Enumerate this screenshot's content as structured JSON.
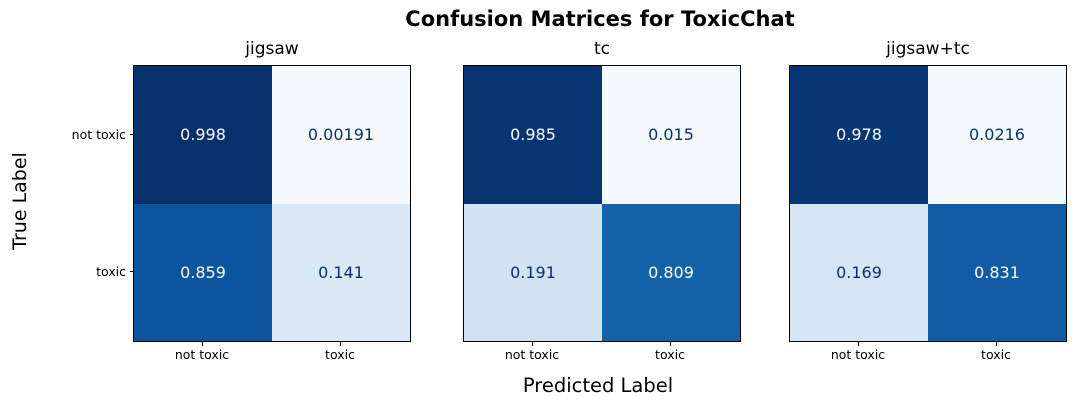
{
  "figure": {
    "title": "Confusion Matrices for ToxicChat",
    "xlabel": "Predicted Label",
    "ylabel": "True Label"
  },
  "tick_labels": {
    "x": [
      "not toxic",
      "toxic"
    ],
    "y": [
      "not toxic",
      "toxic"
    ]
  },
  "colors": {
    "colormap": "Blues",
    "light_text": "#f7fbff",
    "dark_text": "#08306b",
    "border": "#000000",
    "background": "#ffffff"
  },
  "chart_data": [
    {
      "type": "heatmap",
      "title": "jigsaw",
      "x_categories": [
        "not toxic",
        "toxic"
      ],
      "y_categories": [
        "not toxic",
        "toxic"
      ],
      "values": [
        [
          0.998,
          0.00191
        ],
        [
          0.859,
          0.141
        ]
      ],
      "cell_labels": [
        [
          "0.998",
          "0.00191"
        ],
        [
          "0.859",
          "0.141"
        ]
      ],
      "cell_colors": [
        [
          "#08316c",
          "#f6faff"
        ],
        [
          "#0b559f",
          "#dbe9f6"
        ]
      ],
      "text_colors": [
        [
          "#f7fbff",
          "#08306b"
        ],
        [
          "#f7fbff",
          "#08306b"
        ]
      ],
      "value_range": [
        0,
        1
      ],
      "colormap": "Blues"
    },
    {
      "type": "heatmap",
      "title": "tc",
      "x_categories": [
        "not toxic",
        "toxic"
      ],
      "y_categories": [
        "not toxic",
        "toxic"
      ],
      "values": [
        [
          0.985,
          0.015
        ],
        [
          0.191,
          0.809
        ]
      ],
      "cell_labels": [
        [
          "0.985",
          "0.015"
        ],
        [
          "0.191",
          "0.809"
        ]
      ],
      "cell_colors": [
        [
          "#083471",
          "#f4f9fe"
        ],
        [
          "#d1e3f3",
          "#1562a9"
        ]
      ],
      "text_colors": [
        [
          "#f7fbff",
          "#08306b"
        ],
        [
          "#08306b",
          "#f7fbff"
        ]
      ],
      "value_range": [
        0,
        1
      ],
      "colormap": "Blues"
    },
    {
      "type": "heatmap",
      "title": "jigsaw+tc",
      "x_categories": [
        "not toxic",
        "toxic"
      ],
      "y_categories": [
        "not toxic",
        "toxic"
      ],
      "values": [
        [
          0.978,
          0.0216
        ],
        [
          0.169,
          0.831
        ]
      ],
      "cell_labels": [
        [
          "0.978",
          "0.0216"
        ],
        [
          "0.169",
          "0.831"
        ]
      ],
      "cell_colors": [
        [
          "#083674",
          "#f3f8fe"
        ],
        [
          "#d6e5f4",
          "#115ca5"
        ]
      ],
      "text_colors": [
        [
          "#f7fbff",
          "#08306b"
        ],
        [
          "#08306b",
          "#f7fbff"
        ]
      ],
      "value_range": [
        0,
        1
      ],
      "colormap": "Blues"
    }
  ]
}
